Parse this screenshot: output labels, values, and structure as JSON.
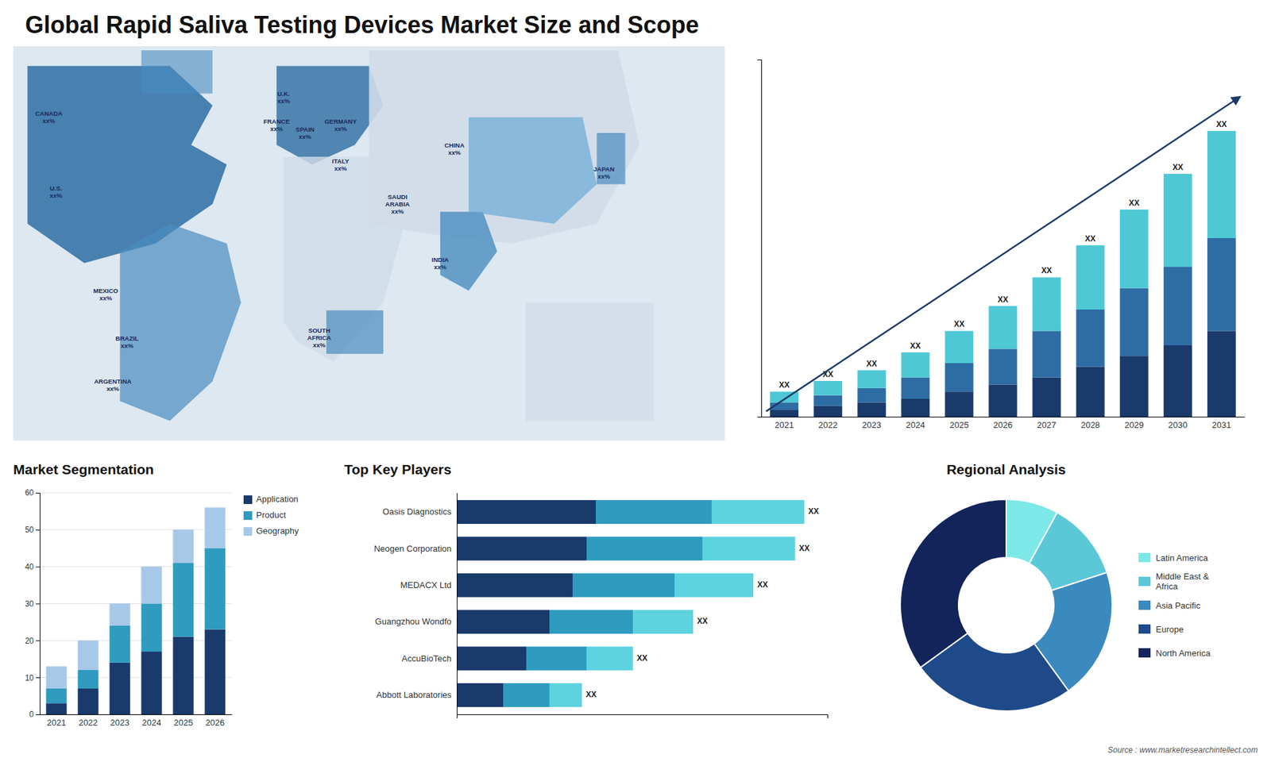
{
  "chart_data": [
    {
      "type": "map",
      "title": "Global Rapid Saliva Testing Devices Market Size and Scope",
      "annotations": [
        "CANADA\nxx%",
        "U.S.\nxx%",
        "MEXICO\nxx%",
        "BRAZIL\nxx%",
        "ARGENTINA\nxx%",
        "U.K.\nxx%",
        "FRANCE\nxx%",
        "SPAIN\nxx%",
        "GERMANY\nxx%",
        "ITALY\nxx%",
        "SAUDI\nARABIA\nxx%",
        "CHINA\nxx%",
        "JAPAN\nxx%",
        "INDIA\nxx%",
        "SOUTH\nAFRICA\nxx%"
      ]
    },
    {
      "type": "bar",
      "categories": [
        "2021",
        "2022",
        "2023",
        "2024",
        "2025",
        "2026",
        "2027",
        "2028",
        "2029",
        "2030",
        "2031"
      ],
      "series": [
        {
          "color": "#1a3a6b",
          "values": [
            2,
            3,
            4,
            5,
            7,
            9,
            11,
            14,
            17,
            20,
            24
          ]
        },
        {
          "color": "#2e6da4",
          "values": [
            2,
            3,
            4,
            6,
            8,
            10,
            13,
            16,
            19,
            22,
            26
          ]
        },
        {
          "color": "#4ec8d4",
          "values": [
            3,
            4,
            5,
            7,
            9,
            12,
            15,
            18,
            22,
            26,
            30
          ]
        }
      ],
      "stacked": true,
      "ylim": [
        0,
        100
      ],
      "grid": false,
      "tick_labels": "x",
      "annotations": [
        "XX",
        "XX",
        "XX",
        "XX",
        "XX",
        "XX",
        "XX",
        "XX",
        "XX",
        "XX",
        "XX"
      ]
    },
    {
      "type": "bar",
      "title": "Market Segmentation",
      "categories": [
        "2021",
        "2022",
        "2023",
        "2024",
        "2025",
        "2026"
      ],
      "series": [
        {
          "name": "Application",
          "color": "#1a3a6b",
          "values": [
            3,
            7,
            14,
            17,
            21,
            23
          ]
        },
        {
          "name": "Product",
          "color": "#2e9bbf",
          "values": [
            4,
            5,
            10,
            13,
            20,
            22
          ]
        },
        {
          "name": "Geography",
          "color": "#a8c8e8",
          "values": [
            6,
            8,
            6,
            10,
            9,
            11
          ]
        }
      ],
      "stacked": true,
      "ylim": [
        0,
        60
      ],
      "yticks": [
        0,
        10,
        20,
        30,
        40,
        50,
        60
      ],
      "grid": true,
      "legend": "right"
    },
    {
      "type": "bar",
      "title": "Top Key Players",
      "orientation": "horizontal",
      "categories": [
        "Oasis Diagnostics",
        "Neogen Corporation",
        "MEDACX Ltd",
        "Guangzhou Wondfo",
        "AccuBioTech",
        "Abbott Laboratories"
      ],
      "series": [
        {
          "color": "#1a3a6b",
          "values": [
            30,
            28,
            25,
            20,
            15,
            10
          ]
        },
        {
          "color": "#2e9bbf",
          "values": [
            25,
            25,
            22,
            18,
            13,
            10
          ]
        },
        {
          "color": "#5dd3e0",
          "values": [
            20,
            20,
            17,
            13,
            10,
            7
          ]
        }
      ],
      "stacked": true,
      "xlim": [
        0,
        80
      ],
      "grid": false,
      "tick_labels": "y",
      "annotations": [
        "XX",
        "XX",
        "XX",
        "XX",
        "XX",
        "XX"
      ]
    },
    {
      "type": "pie",
      "title": "Regional Analysis",
      "categories": [
        "Latin America",
        "Middle East &\nAfrica",
        "Asia Pacific",
        "Europe",
        "North America"
      ],
      "values": [
        8,
        12,
        20,
        25,
        35
      ],
      "colors": [
        "#7de8e8",
        "#5bc8d8",
        "#3a8abf",
        "#1e4a8a",
        "#12245a"
      ],
      "legend": "right"
    },
    {
      "type": "text",
      "annotations": [
        "Source : www.marketresearchintellect.com"
      ]
    }
  ]
}
